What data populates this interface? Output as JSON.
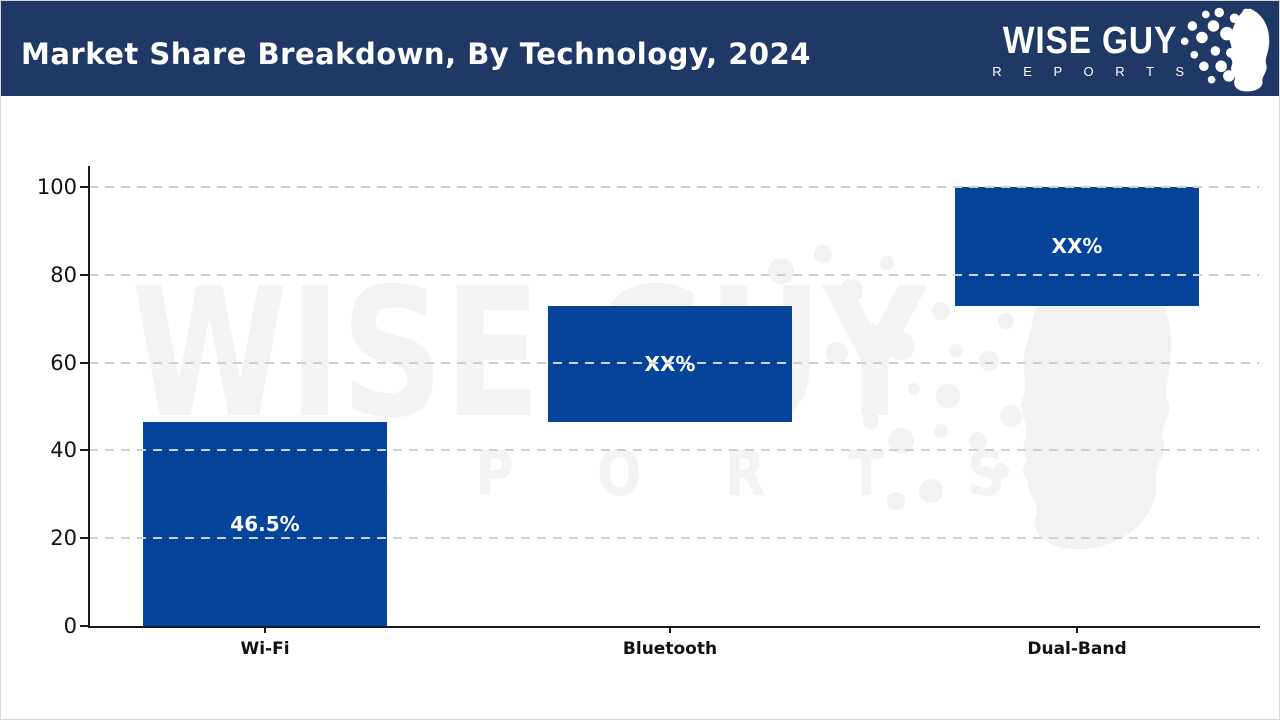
{
  "header": {
    "title": "Market Share Breakdown, By Technology, 2024",
    "logo_line1": "WISE GUY",
    "logo_line2": "R E P O R T S"
  },
  "watermark": {
    "line1": "WISE GUY",
    "line2": "R E P O R T S"
  },
  "chart_data": {
    "type": "bar",
    "subtype": "waterfall",
    "title": "Market Share Breakdown, By Technology, 2024",
    "categories": [
      "Wi-Fi",
      "Bluetooth",
      "Dual-Band"
    ],
    "segments": [
      {
        "category": "Wi-Fi",
        "start": 0,
        "end": 46.5,
        "value": 46.5,
        "label": "46.5%"
      },
      {
        "category": "Bluetooth",
        "start": 46.5,
        "end": 73,
        "value": 26.5,
        "label": "XX%"
      },
      {
        "category": "Dual-Band",
        "start": 73,
        "end": 100,
        "value": 27,
        "label": "XX%"
      }
    ],
    "xlabel": "",
    "ylabel": "",
    "ylim": [
      0,
      105
    ],
    "yticks": [
      0,
      20,
      40,
      60,
      80,
      100
    ],
    "grid": "horizontal-dashed",
    "legend": "none",
    "colors": {
      "bar": "#05449b",
      "bar_label": "#ffffff",
      "header_bg": "#1f3866",
      "gridline": "#cfcfcf",
      "axis": "#1a1a1a",
      "watermark": "#f2f2f4"
    }
  }
}
